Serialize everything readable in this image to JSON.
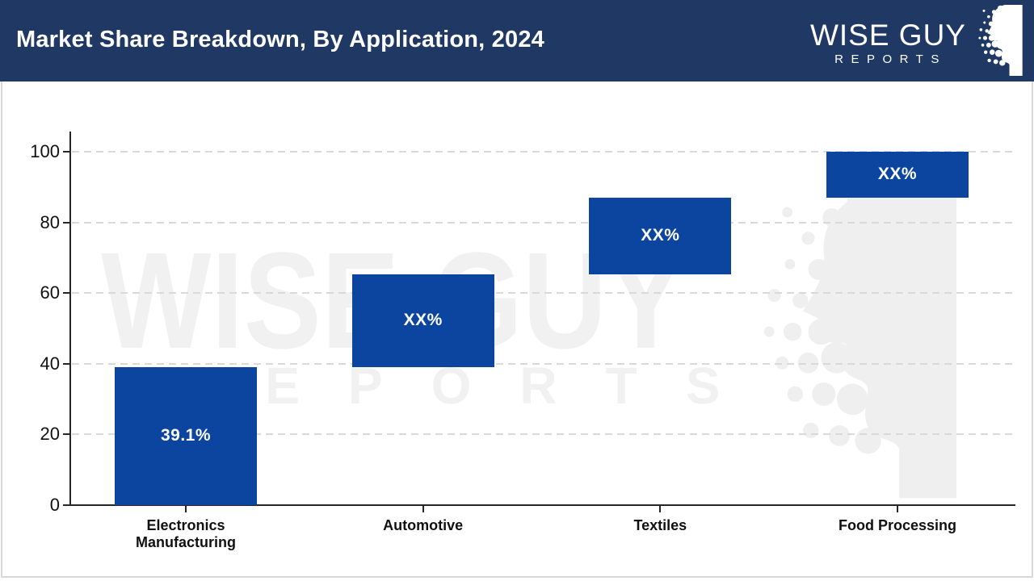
{
  "header": {
    "title": "Market Share Breakdown, By Application, 2024",
    "bg_color": "#1f3864",
    "logo": {
      "line1": "WISE GUY",
      "line2": "REPORTS"
    }
  },
  "watermark": {
    "line1": "WISE GUY",
    "line2": "REPORTS"
  },
  "chart_data": {
    "type": "bar",
    "subtype": "waterfall-floating-bars",
    "title": "Market Share Breakdown, By Application, 2024",
    "categories": [
      "Electronics Manufacturing",
      "Automotive",
      "Textiles",
      "Food Processing"
    ],
    "bars": [
      {
        "category": "Electronics Manufacturing",
        "start": 0,
        "end": 39.1,
        "label": "39.1%"
      },
      {
        "category": "Automotive",
        "start": 39.1,
        "end": 65.3,
        "label": "XX%"
      },
      {
        "category": "Textiles",
        "start": 65.3,
        "end": 87.0,
        "label": "XX%"
      },
      {
        "category": "Food Processing",
        "start": 87.0,
        "end": 100,
        "label": "XX%"
      }
    ],
    "bar_color": "#0b45a0",
    "bar_label_color": "#ffffff",
    "yticks": [
      0,
      20,
      40,
      60,
      80,
      100
    ],
    "ylim": [
      0,
      106
    ],
    "xlabel": "",
    "ylabel": "",
    "grid": "horizontal-dashed",
    "legend": "none"
  }
}
